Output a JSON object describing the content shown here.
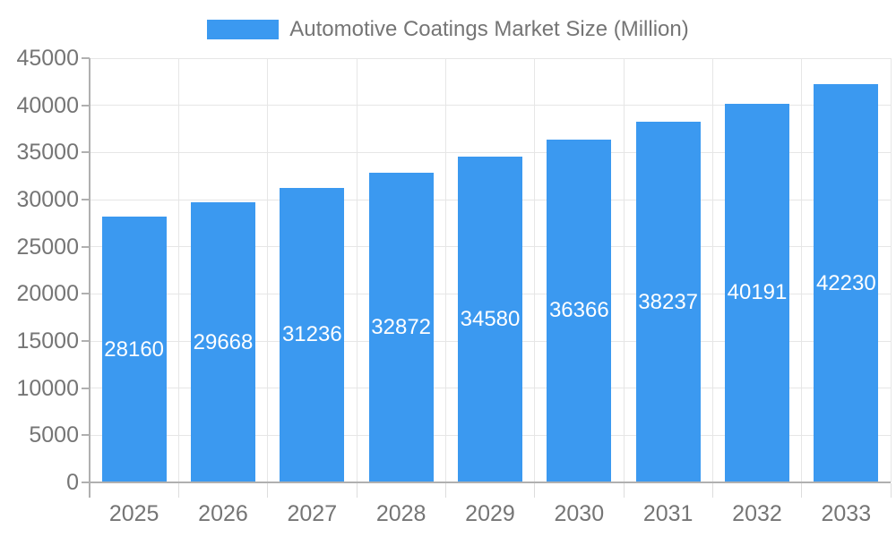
{
  "chart_data": {
    "type": "bar",
    "title": "Automotive Coatings Market Size (Million)",
    "series_name": "Automotive Coatings Market Size (Million)",
    "categories": [
      "2025",
      "2026",
      "2027",
      "2028",
      "2029",
      "2030",
      "2031",
      "2032",
      "2033"
    ],
    "values": [
      28160,
      29668,
      31236,
      32872,
      34580,
      36366,
      38237,
      40191,
      42230
    ],
    "data_labels": [
      "28160",
      "29668",
      "31236",
      "32872",
      "34580",
      "36366",
      "38237",
      "40191",
      "42230"
    ],
    "xlabel": "",
    "ylabel": "",
    "ylim": [
      0,
      45000
    ],
    "ytick_step": 5000,
    "yticks": [
      0,
      5000,
      10000,
      15000,
      20000,
      25000,
      30000,
      35000,
      40000,
      45000
    ],
    "grid": true,
    "legend_position": "top"
  },
  "colors": {
    "bar": "#3b99f0",
    "bar_label": "#ffffff",
    "axis_text": "#757575",
    "legend_text": "#757575",
    "gridline": "#e6e6e6",
    "axis_line": "#b0b0b0",
    "background": "#ffffff"
  }
}
